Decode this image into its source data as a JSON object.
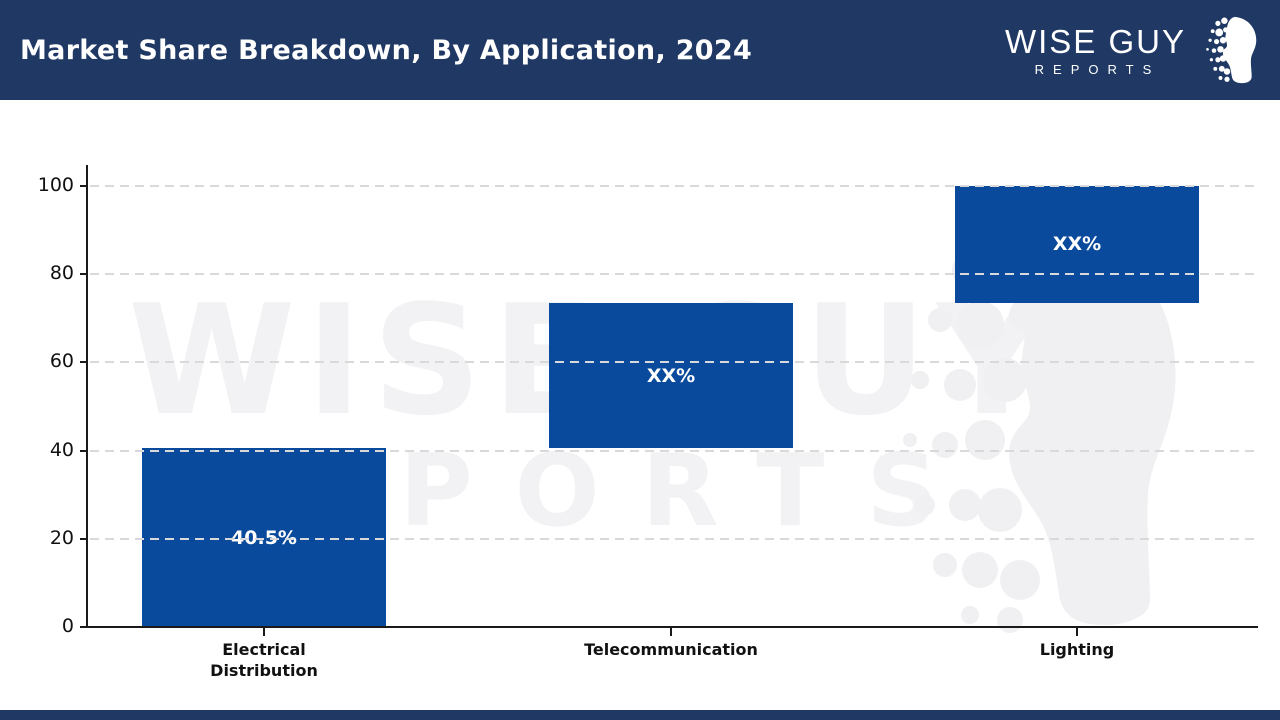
{
  "header": {
    "title": "Market Share Breakdown, By Application, 2024",
    "logo_line1": "WISE GUY",
    "logo_line2": "REPORTS"
  },
  "watermark": {
    "line1": "WISE GUY",
    "line2": "REPORTS"
  },
  "chart_data": {
    "type": "waterfall",
    "title": "Market Share Breakdown, By Application, 2024",
    "categories": [
      "Electrical\nDistribution",
      "Telecommunication",
      "Lighting"
    ],
    "series": [
      {
        "name": "Market Share (%)",
        "segments": [
          {
            "category": "Electrical Distribution",
            "start": 0,
            "end": 40.5,
            "label": "40.5%"
          },
          {
            "category": "Telecommunication",
            "start": 40.5,
            "end": 73.5,
            "label": "XX%"
          },
          {
            "category": "Lighting",
            "start": 73.5,
            "end": 100,
            "label": "XX%"
          }
        ]
      }
    ],
    "xlabel": "",
    "ylabel": "",
    "ylim": [
      0,
      100
    ],
    "yticks": [
      0,
      20,
      40,
      60,
      80,
      100
    ],
    "grid": "horizontal-dashed",
    "legend": "none",
    "colors": {
      "bar": "#0a4a9c",
      "bar_label": "#ffffff",
      "grid": "#d9d9d9",
      "axis": "#1a1a1a",
      "header_bg": "#203864",
      "watermark": "#f2f2f4"
    }
  }
}
